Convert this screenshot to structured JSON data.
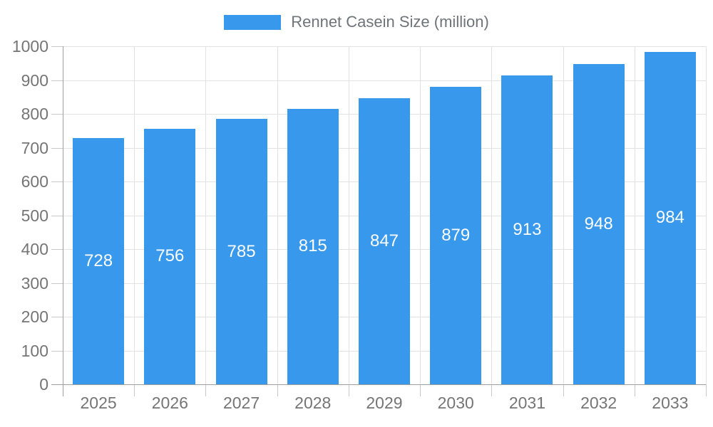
{
  "chart_data": {
    "type": "bar",
    "title": "Rennet Casein Size (million)",
    "categories": [
      "2025",
      "2026",
      "2027",
      "2028",
      "2029",
      "2030",
      "2031",
      "2032",
      "2033"
    ],
    "series": [
      {
        "name": "Rennet Casein Size (million)",
        "values": [
          728,
          756,
          785,
          815,
          847,
          879,
          913,
          948,
          984
        ]
      }
    ],
    "values": [
      728,
      756,
      785,
      815,
      847,
      879,
      913,
      948,
      984
    ],
    "bar_value_labels": [
      "728",
      "756",
      "785",
      "815",
      "847",
      "879",
      "913",
      "948",
      "984"
    ],
    "y_tick_labels": [
      "0",
      "100",
      "200",
      "300",
      "400",
      "500",
      "600",
      "700",
      "800",
      "900",
      "1000"
    ],
    "xlabel": "",
    "ylabel": "",
    "ylim": [
      0,
      1000
    ],
    "ytick_step": 100,
    "grid": true,
    "legend_position": "top"
  },
  "legend": {
    "swatch_icon": "legend-color-swatch"
  },
  "colors": {
    "bar": "#3898EC",
    "bar_value_label": "#FFFFFF",
    "axis_text": "#757575",
    "legend_text": "#6E7479",
    "gridline": "#E2E2E2",
    "tick": "#C9C9C9",
    "axis_line": "#9E9E9E",
    "background": "#FFFFFF"
  }
}
